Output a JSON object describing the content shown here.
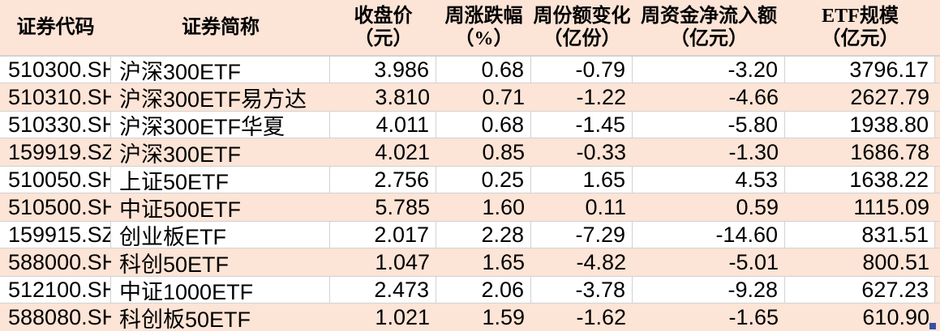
{
  "chart_data": {
    "type": "table",
    "columns": [
      {
        "key": "code",
        "label": "证券代码",
        "unit": ""
      },
      {
        "key": "name",
        "label": "证券简称",
        "unit": ""
      },
      {
        "key": "close",
        "label": "收盘价",
        "unit": "（元）"
      },
      {
        "key": "week_chg",
        "label": "周涨跌幅",
        "unit": "（%）"
      },
      {
        "key": "share_chg",
        "label": "周份额变化",
        "unit": "（亿份）"
      },
      {
        "key": "net_inflow",
        "label": "周资金净流入额",
        "unit": "（亿元）"
      },
      {
        "key": "aum",
        "label": "ETF规模",
        "unit": "（亿元）"
      }
    ],
    "rows": [
      {
        "code": "510300.SH",
        "name": "沪深300ETF",
        "close": "3.986",
        "week_chg": "0.68",
        "share_chg": "-0.79",
        "net_inflow": "-3.20",
        "aum": "3796.17"
      },
      {
        "code": "510310.SH",
        "name": "沪深300ETF易方达",
        "close": "3.810",
        "week_chg": "0.71",
        "share_chg": "-1.22",
        "net_inflow": "-4.66",
        "aum": "2627.79"
      },
      {
        "code": "510330.SH",
        "name": "沪深300ETF华夏",
        "close": "4.011",
        "week_chg": "0.68",
        "share_chg": "-1.45",
        "net_inflow": "-5.80",
        "aum": "1938.80"
      },
      {
        "code": "159919.SZ",
        "name": "沪深300ETF",
        "close": "4.021",
        "week_chg": "0.85",
        "share_chg": "-0.33",
        "net_inflow": "-1.30",
        "aum": "1686.78"
      },
      {
        "code": "510050.SH",
        "name": "上证50ETF",
        "close": "2.756",
        "week_chg": "0.25",
        "share_chg": "1.65",
        "net_inflow": "4.53",
        "aum": "1638.22"
      },
      {
        "code": "510500.SH",
        "name": "中证500ETF",
        "close": "5.785",
        "week_chg": "1.60",
        "share_chg": "0.11",
        "net_inflow": "0.59",
        "aum": "1115.09"
      },
      {
        "code": "159915.SZ",
        "name": "创业板ETF",
        "close": "2.017",
        "week_chg": "2.28",
        "share_chg": "-7.29",
        "net_inflow": "-14.60",
        "aum": "831.51"
      },
      {
        "code": "588000.SH",
        "name": "科创50ETF",
        "close": "1.047",
        "week_chg": "1.65",
        "share_chg": "-4.82",
        "net_inflow": "-5.01",
        "aum": "800.51"
      },
      {
        "code": "512100.SH",
        "name": "中证1000ETF",
        "close": "2.473",
        "week_chg": "2.06",
        "share_chg": "-3.78",
        "net_inflow": "-9.28",
        "aum": "627.23"
      },
      {
        "code": "588080.SH",
        "name": "科创板50ETF",
        "close": "1.021",
        "week_chg": "1.59",
        "share_chg": "-1.62",
        "net_inflow": "-1.65",
        "aum": "610.90"
      }
    ]
  },
  "colors": {
    "header_bg": "#fce4d6",
    "row_bg": "#ffffff",
    "row_alt_bg": "#fce4d6",
    "gridline": "#d2d2d2",
    "text": "#000000",
    "fill_handle": "#3a50a3"
  }
}
